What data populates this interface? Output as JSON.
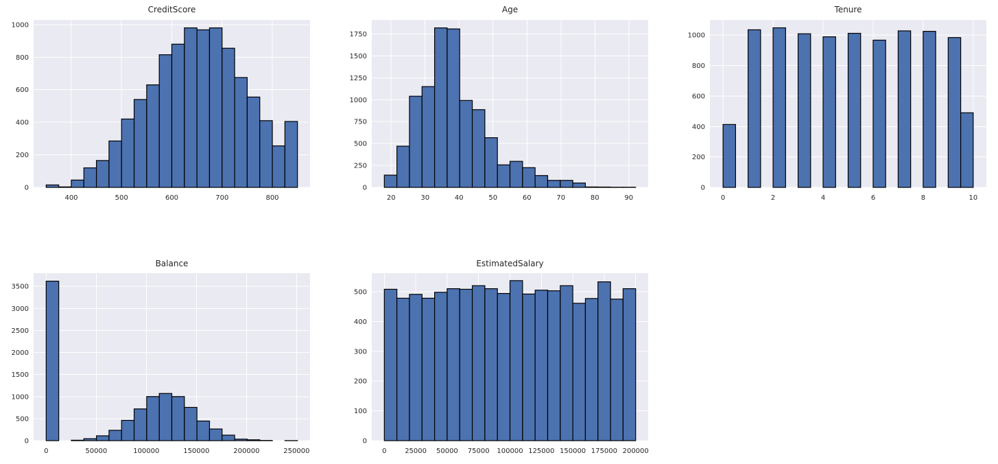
{
  "style": {
    "figure_bg": "#ffffff",
    "axes_bg": "#eaeaf2",
    "grid_color": "#ffffff",
    "bar_fill": "#4c72b0",
    "bar_edge": "#000000",
    "tick_label_color": "#262626",
    "title_color": "#262626"
  },
  "chart_data": [
    {
      "type": "bar",
      "subtype": "histogram",
      "title": "CreditScore",
      "bin_start": 350,
      "bin_width": 25,
      "values": [
        15,
        3,
        45,
        120,
        165,
        285,
        420,
        540,
        630,
        815,
        880,
        980,
        968,
        980,
        855,
        675,
        555,
        410,
        255,
        405
      ],
      "x_ticks": [
        400,
        500,
        600,
        700,
        800
      ],
      "y_ticks": [
        0,
        200,
        400,
        600,
        800,
        1000
      ],
      "xlim": [
        325,
        875
      ],
      "ylim": [
        0,
        1029
      ],
      "grid": true,
      "legend": null,
      "xlabel": "",
      "ylabel": ""
    },
    {
      "type": "bar",
      "subtype": "histogram",
      "title": "Age",
      "bin_start": 18,
      "bin_width": 3.7,
      "values": [
        140,
        470,
        1040,
        1150,
        1820,
        1808,
        992,
        887,
        567,
        257,
        297,
        225,
        135,
        80,
        80,
        50,
        5,
        4,
        2,
        2
      ],
      "x_ticks": [
        20,
        30,
        40,
        50,
        60,
        70,
        80,
        90
      ],
      "y_ticks": [
        0,
        250,
        500,
        750,
        1000,
        1250,
        1500,
        1750
      ],
      "xlim": [
        14.3,
        95.7
      ],
      "ylim": [
        0,
        1911
      ],
      "grid": true,
      "legend": null,
      "xlabel": "",
      "ylabel": ""
    },
    {
      "type": "bar",
      "subtype": "histogram",
      "title": "Tenure",
      "bin_start": 0,
      "bin_width": 0.5,
      "values": [
        413,
        0,
        1035,
        0,
        1048,
        0,
        1009,
        0,
        989,
        0,
        1012,
        0,
        967,
        0,
        1028,
        0,
        1025,
        0,
        984,
        490
      ],
      "x_ticks": [
        0,
        2,
        4,
        6,
        8,
        10
      ],
      "y_ticks": [
        0,
        200,
        400,
        600,
        800,
        1000
      ],
      "xlim": [
        -0.525,
        10.525
      ],
      "ylim": [
        0,
        1100
      ],
      "grid": true,
      "legend": null,
      "xlabel": "",
      "ylabel": ""
    },
    {
      "type": "bar",
      "subtype": "histogram",
      "title": "Balance",
      "bin_start": 0,
      "bin_width": 12545,
      "values": [
        3617,
        0,
        10,
        45,
        110,
        235,
        460,
        720,
        1000,
        1070,
        1000,
        755,
        445,
        265,
        125,
        35,
        20,
        5,
        0,
        2
      ],
      "x_ticks": [
        0,
        50000,
        100000,
        150000,
        200000,
        250000
      ],
      "y_ticks": [
        0,
        500,
        1000,
        1500,
        2000,
        2500,
        3000,
        3500
      ],
      "xlim": [
        -12545,
        263443
      ],
      "ylim": [
        0,
        3798
      ],
      "grid": true,
      "legend": null,
      "xlabel": "",
      "ylabel": ""
    },
    {
      "type": "bar",
      "subtype": "histogram",
      "title": "EstimatedSalary",
      "bin_start": 11,
      "bin_width": 10000,
      "values": [
        508,
        478,
        491,
        478,
        498,
        510,
        508,
        520,
        510,
        494,
        537,
        492,
        505,
        503,
        520,
        461,
        477,
        533,
        475,
        510
      ],
      "x_ticks": [
        0,
        25000,
        50000,
        75000,
        100000,
        125000,
        150000,
        175000,
        200000
      ],
      "y_ticks": [
        0,
        100,
        200,
        300,
        400,
        500
      ],
      "xlim": [
        -9988,
        209990
      ],
      "ylim": [
        0,
        562
      ],
      "grid": true,
      "legend": null,
      "xlabel": "",
      "ylabel": ""
    }
  ]
}
